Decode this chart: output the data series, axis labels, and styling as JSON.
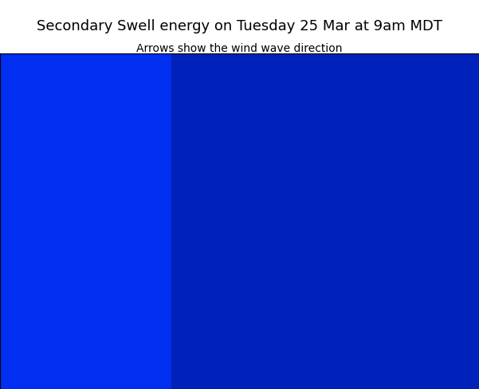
{
  "title": "Secondary Swell energy on Tuesday 25 Mar at 9am MDT",
  "subtitle": "Arrows show the wind wave direction",
  "title_fontsize": 13,
  "subtitle_fontsize": 10,
  "fig_width": 6.01,
  "fig_height": 4.89,
  "dpi": 100,
  "background_color": "#ffffff",
  "map_extent": [
    -130,
    -88,
    24,
    52
  ],
  "ocean_color_deep": "#0000cc",
  "ocean_color_bright": "#0044ff",
  "land_color_light": "#c8c8c8",
  "land_color_dark": "#888888",
  "arrow_color": "#00ffff",
  "border_color": "#000000"
}
